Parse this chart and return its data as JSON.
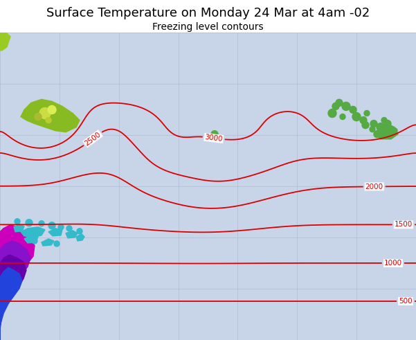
{
  "title": "Surface Temperature on Monday 24 Mar at 4am -02",
  "subtitle": "Freezing level contours",
  "title_fontsize": 13,
  "subtitle_fontsize": 10,
  "ocean_color": "#c8d4e8",
  "contour_color": "#dd0000",
  "contour_linewidth": 1.3,
  "contour_levels": [
    500,
    1000,
    1500,
    2000,
    2500,
    3000
  ],
  "grid_color": "#b0bcd4",
  "figsize": [
    6.01,
    4.91
  ],
  "dpi": 100
}
